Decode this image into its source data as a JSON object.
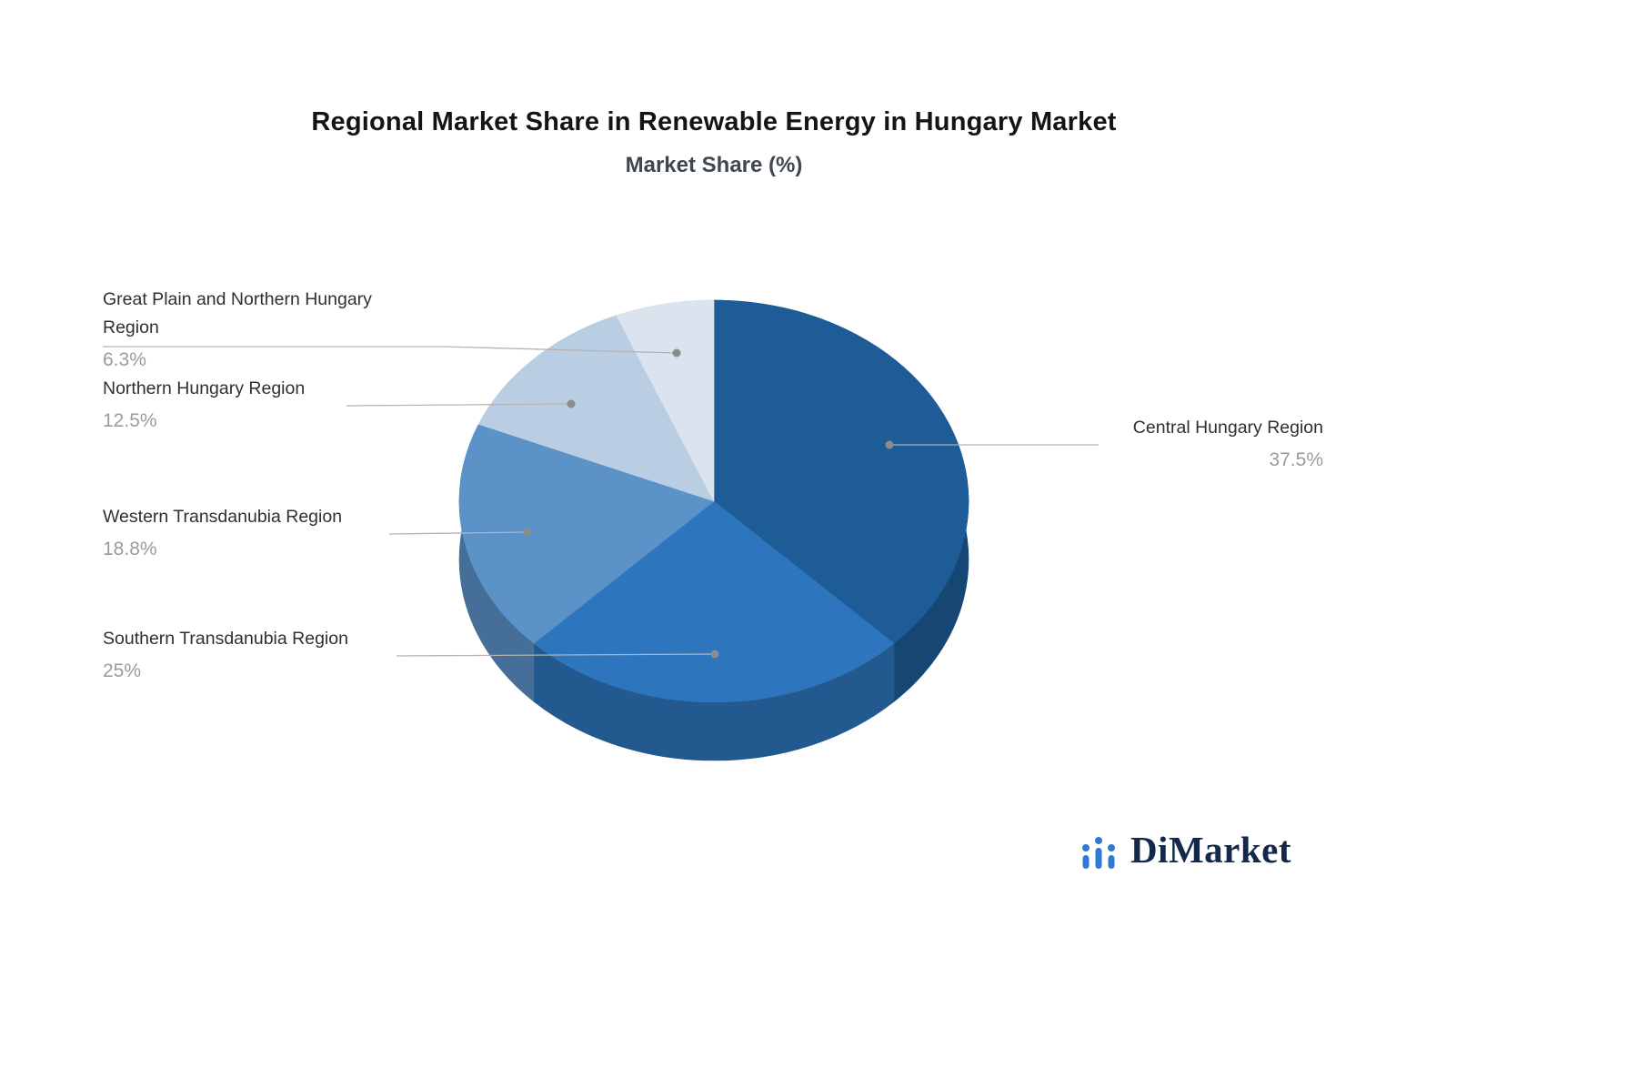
{
  "header": {
    "title": "Regional Market Share in Renewable Energy in Hungary Market",
    "subtitle": "Market Share (%)"
  },
  "chart_data": {
    "type": "pie",
    "style": "3d",
    "title": "Regional Market Share in Renewable Energy in Hungary Market",
    "subtitle": "Market Share (%)",
    "unit": "%",
    "start_angle_deg": 0,
    "direction": "clockwise",
    "legend_position": "none",
    "slices": [
      {
        "label": "Central Hungary Region",
        "value": 37.5,
        "display": "37.5%",
        "color": "#1d5c97"
      },
      {
        "label": "Southern Transdanubia Region",
        "value": 25,
        "display": "25%",
        "color": "#2d76bd"
      },
      {
        "label": "Western Transdanubia Region",
        "value": 18.75,
        "display": "18.8%",
        "color": "#5b92c8"
      },
      {
        "label": "Northern Hungary Region",
        "value": 12.5,
        "display": "12.5%",
        "color": "#b9cde3"
      },
      {
        "label": "Great Plain and Northern Hungary Region",
        "value": 6.25,
        "display": "6.3%",
        "color": "#dbe4ee"
      }
    ]
  },
  "logo": {
    "text": "DiMarket",
    "accent_color": "#2e79d2",
    "text_color": "#13294b"
  }
}
